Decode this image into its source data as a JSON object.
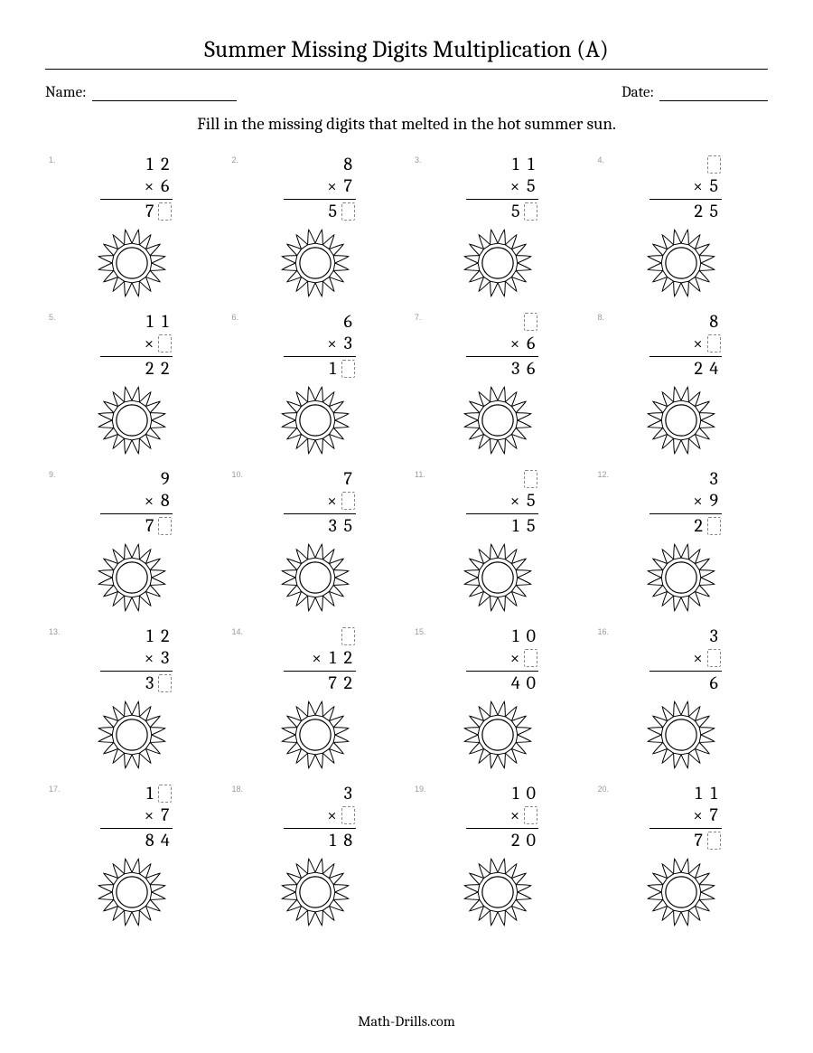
{
  "title": "Summer Missing Digits Multiplication (A)",
  "name_label": "Name:",
  "date_label": "Date:",
  "instructions": "Fill in the missing digits that melted in the hot summer sun.",
  "footer": "Math-Drills.com",
  "op": "×",
  "sun_color": "#000000",
  "sun_size": 78,
  "blank_border_color": "#888888",
  "problems": [
    {
      "n": "1.",
      "top": [
        "1",
        "2"
      ],
      "bot": [
        "6"
      ],
      "res": [
        "7",
        "_"
      ]
    },
    {
      "n": "2.",
      "top": [
        "8"
      ],
      "bot": [
        "7"
      ],
      "res": [
        "5",
        "_"
      ]
    },
    {
      "n": "3.",
      "top": [
        "1",
        "1"
      ],
      "bot": [
        "5"
      ],
      "res": [
        "5",
        "_"
      ]
    },
    {
      "n": "4.",
      "top": [
        "_"
      ],
      "bot": [
        "5"
      ],
      "res": [
        "2",
        "5"
      ]
    },
    {
      "n": "5.",
      "top": [
        "1",
        "1"
      ],
      "bot": [
        "_"
      ],
      "res": [
        "2",
        "2"
      ]
    },
    {
      "n": "6.",
      "top": [
        "6"
      ],
      "bot": [
        "3"
      ],
      "res": [
        "1",
        "_"
      ]
    },
    {
      "n": "7.",
      "top": [
        "_"
      ],
      "bot": [
        "6"
      ],
      "res": [
        "3",
        "6"
      ]
    },
    {
      "n": "8.",
      "top": [
        "8"
      ],
      "bot": [
        "_"
      ],
      "res": [
        "2",
        "4"
      ]
    },
    {
      "n": "9.",
      "top": [
        "9"
      ],
      "bot": [
        "8"
      ],
      "res": [
        "7",
        "_"
      ]
    },
    {
      "n": "10.",
      "top": [
        "7"
      ],
      "bot": [
        "_"
      ],
      "res": [
        "3",
        "5"
      ]
    },
    {
      "n": "11.",
      "top": [
        "_"
      ],
      "bot": [
        "5"
      ],
      "res": [
        "1",
        "5"
      ]
    },
    {
      "n": "12.",
      "top": [
        "3"
      ],
      "bot": [
        "9"
      ],
      "res": [
        "2",
        "_"
      ]
    },
    {
      "n": "13.",
      "top": [
        "1",
        "2"
      ],
      "bot": [
        "3"
      ],
      "res": [
        "3",
        "_"
      ]
    },
    {
      "n": "14.",
      "top": [
        "_"
      ],
      "bot": [
        "1",
        "2"
      ],
      "res": [
        "7",
        "2"
      ]
    },
    {
      "n": "15.",
      "top": [
        "1",
        "0"
      ],
      "bot": [
        "_"
      ],
      "res": [
        "4",
        "0"
      ]
    },
    {
      "n": "16.",
      "top": [
        "3"
      ],
      "bot": [
        "_"
      ],
      "res": [
        "6"
      ]
    },
    {
      "n": "17.",
      "top": [
        "1",
        "_"
      ],
      "bot": [
        "7"
      ],
      "res": [
        "8",
        "4"
      ]
    },
    {
      "n": "18.",
      "top": [
        "3"
      ],
      "bot": [
        "_"
      ],
      "res": [
        "1",
        "8"
      ]
    },
    {
      "n": "19.",
      "top": [
        "1",
        "0"
      ],
      "bot": [
        "_"
      ],
      "res": [
        "2",
        "0"
      ]
    },
    {
      "n": "20.",
      "top": [
        "1",
        "1"
      ],
      "bot": [
        "7"
      ],
      "res": [
        "7",
        "_"
      ]
    }
  ]
}
